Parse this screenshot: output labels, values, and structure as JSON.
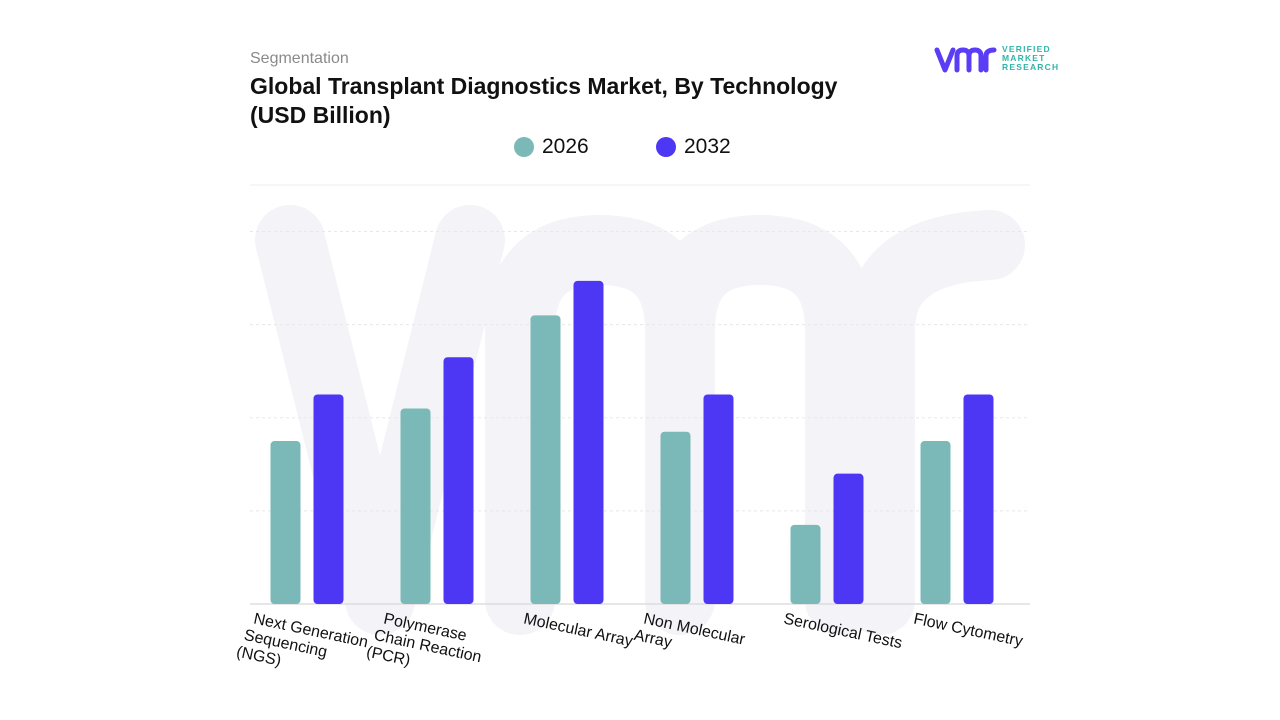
{
  "header": {
    "subtitle": "Segmentation",
    "title": "Global Transplant Diagnostics Market, By Technology (USD Billion)"
  },
  "logo": {
    "lines": [
      "VERIFIED",
      "MARKET",
      "RESEARCH"
    ],
    "brand_color": "#5b3df5",
    "accent_color": "#2fb5a8"
  },
  "chart_data": {
    "type": "bar",
    "title": "Global Transplant Diagnostics Market, By Technology (USD Billion)",
    "xlabel": "",
    "ylabel": "",
    "categories": [
      [
        "Next Generation",
        "Sequencing",
        "(NGS)"
      ],
      [
        "Polymerase",
        "Chain Reaction",
        "(PCR)"
      ],
      [
        "Molecular Array"
      ],
      [
        "Non Molecular",
        "Array"
      ],
      [
        "Serological Tests"
      ],
      [
        "Flow Cytometry"
      ]
    ],
    "series": [
      {
        "name": "2026",
        "color": "#7bb8b8",
        "values": [
          1.75,
          2.1,
          3.1,
          1.85,
          0.85,
          1.75
        ]
      },
      {
        "name": "2032",
        "color": "#4e36f5",
        "values": [
          2.25,
          2.65,
          3.47,
          2.25,
          1.4,
          2.25
        ]
      }
    ],
    "ylim": [
      0,
      4.5
    ],
    "grid": true,
    "legend": "top-center"
  }
}
